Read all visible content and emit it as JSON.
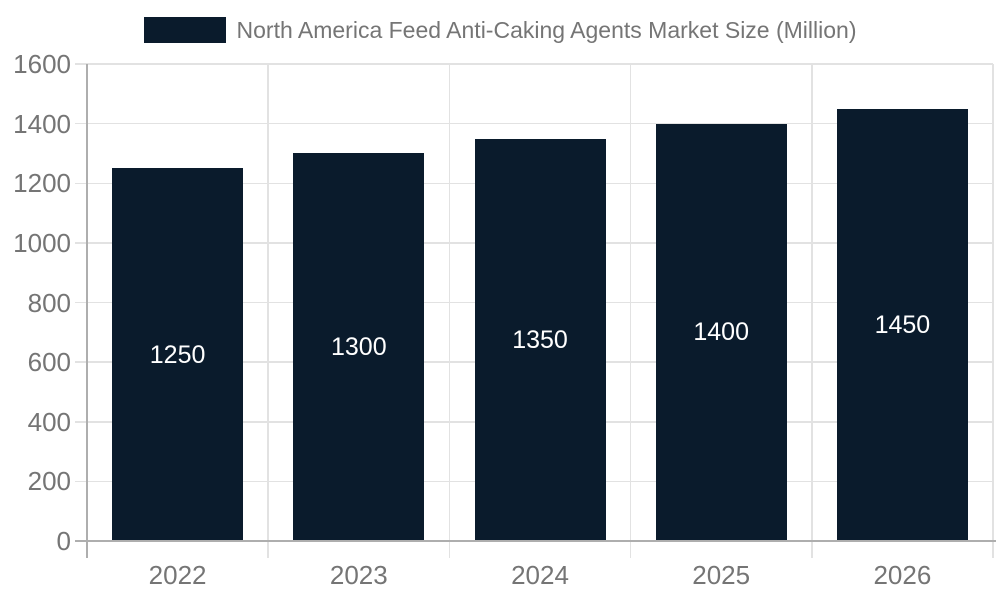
{
  "legend": {
    "label": "North America Feed Anti-Caking Agents Market Size (Million)"
  },
  "colors": {
    "bar": "#0a1b2c",
    "axis_line": "#aeaeae",
    "gridline": "#e2e2e2",
    "tick_label_text": "#757575",
    "legend_text": "#757575",
    "value_label_text": "#ffffff",
    "background": "#ffffff"
  },
  "chart_data": {
    "type": "bar",
    "title": "North America Feed Anti-Caking Agents Market Size (Million)",
    "categories": [
      "2022",
      "2023",
      "2024",
      "2025",
      "2026"
    ],
    "values": [
      1250,
      1300,
      1350,
      1400,
      1450
    ],
    "bar_labels": [
      "1250",
      "1300",
      "1350",
      "1400",
      "1450"
    ],
    "xlabel": "",
    "ylabel": "",
    "ylim": [
      0,
      1600
    ],
    "ytick_interval": 200,
    "yticks": [
      0,
      200,
      400,
      600,
      800,
      1000,
      1200,
      1400,
      1600
    ],
    "grid": true,
    "legend_position": "top-center",
    "value_label_position": "bar-center"
  }
}
